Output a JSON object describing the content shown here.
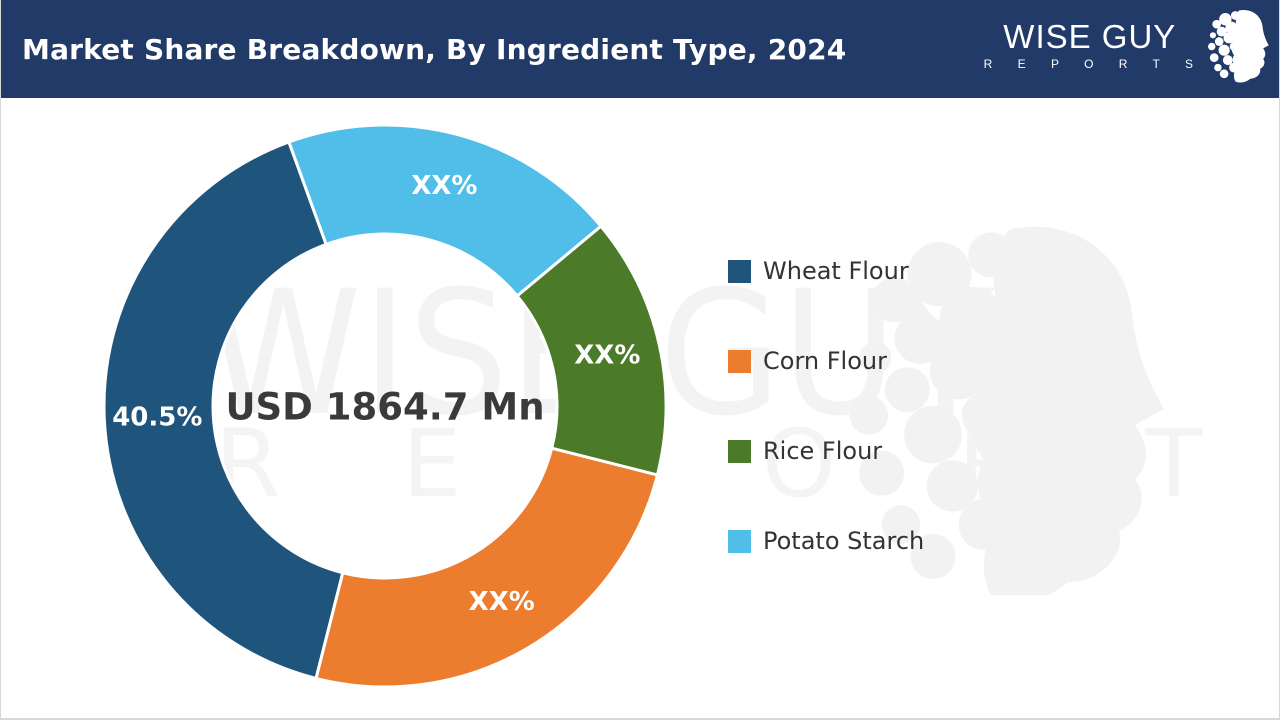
{
  "header": {
    "title": "Market Share Breakdown, By Ingredient Type, 2024",
    "logo": {
      "brand": "WISE GUY",
      "sub": "R E P O R T S"
    }
  },
  "watermark": {
    "text_large": "WISE GUY",
    "text_small": "R E P O R T S"
  },
  "chart_data": {
    "type": "pie",
    "subtype": "donut",
    "title": "Market Share Breakdown, By Ingredient Type, 2024",
    "center_label": "USD 1864.7 Mn",
    "start_angle_deg": 110,
    "direction": "counterclockwise",
    "legend_position": "right",
    "slices": [
      {
        "name": "Wheat Flour",
        "display": "40.5%",
        "percent": 40.5,
        "percent_estimated": false,
        "color": "#1F547C"
      },
      {
        "name": "Corn Flour",
        "display": "XX%",
        "percent": 25.0,
        "percent_estimated": true,
        "color": "#EC7D2F"
      },
      {
        "name": "Rice Flour",
        "display": "XX%",
        "percent": 15.0,
        "percent_estimated": true,
        "color": "#4B7A28"
      },
      {
        "name": "Potato Starch",
        "display": "XX%",
        "percent": 19.5,
        "percent_estimated": true,
        "color": "#50BEE8"
      }
    ],
    "colors": {
      "header_bg": "#213A67",
      "center_text": "#3a3a3a",
      "slice_label_text": "#ffffff",
      "legend_text": "#333333"
    }
  }
}
